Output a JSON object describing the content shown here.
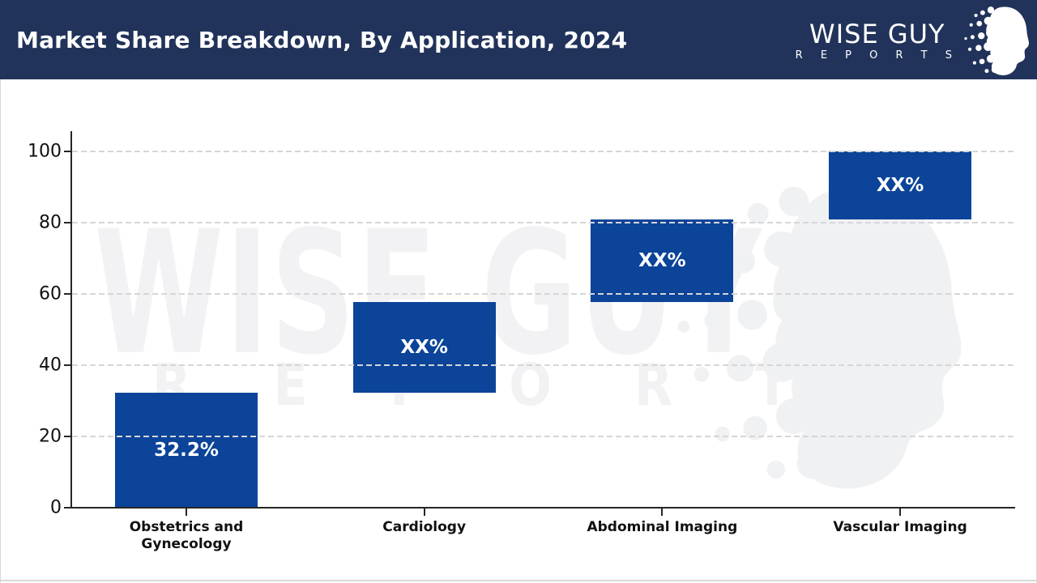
{
  "header": {
    "title": "Market Share Breakdown, By Application, 2024",
    "bg_color": "#21335A",
    "logo": {
      "line1": "WISE GUY",
      "line2": "R E P O R T S",
      "head_icon": "dotted-head-profile"
    }
  },
  "watermark": {
    "line1": "WISE GUY",
    "line2": "R E P O R T S",
    "head_icon": "dotted-head-profile",
    "color": "#f2f2f4"
  },
  "chart_data": {
    "type": "bar",
    "subtype": "waterfall",
    "title": "Market Share Breakdown, By Application, 2024",
    "categories": [
      "Obstetrics and Gynecology",
      "Cardiology",
      "Abdominal Imaging",
      "Vascular Imaging"
    ],
    "segments": [
      {
        "category": "Obstetrics and Gynecology",
        "start": 0,
        "end": 32.2,
        "label": "32.2%"
      },
      {
        "category": "Cardiology",
        "start": 32.2,
        "end": 57.7,
        "label": "XX%"
      },
      {
        "category": "Abdominal Imaging",
        "start": 57.7,
        "end": 80.9,
        "label": "XX%"
      },
      {
        "category": "Vascular Imaging",
        "start": 80.9,
        "end": 100,
        "label": "XX%"
      }
    ],
    "values_shown": [
      "32.2%",
      "XX%",
      "XX%",
      "XX%"
    ],
    "xlabel": "",
    "ylabel": "",
    "ylim": [
      0,
      100
    ],
    "yticks": [
      0,
      20,
      40,
      60,
      80,
      100
    ],
    "grid": "horizontal-dashed",
    "legend": "none",
    "bar_color": "#0B4499",
    "bar_label_color": "#ffffff",
    "axis_color": "#262626",
    "gridline_color": "#d6d6d6"
  }
}
